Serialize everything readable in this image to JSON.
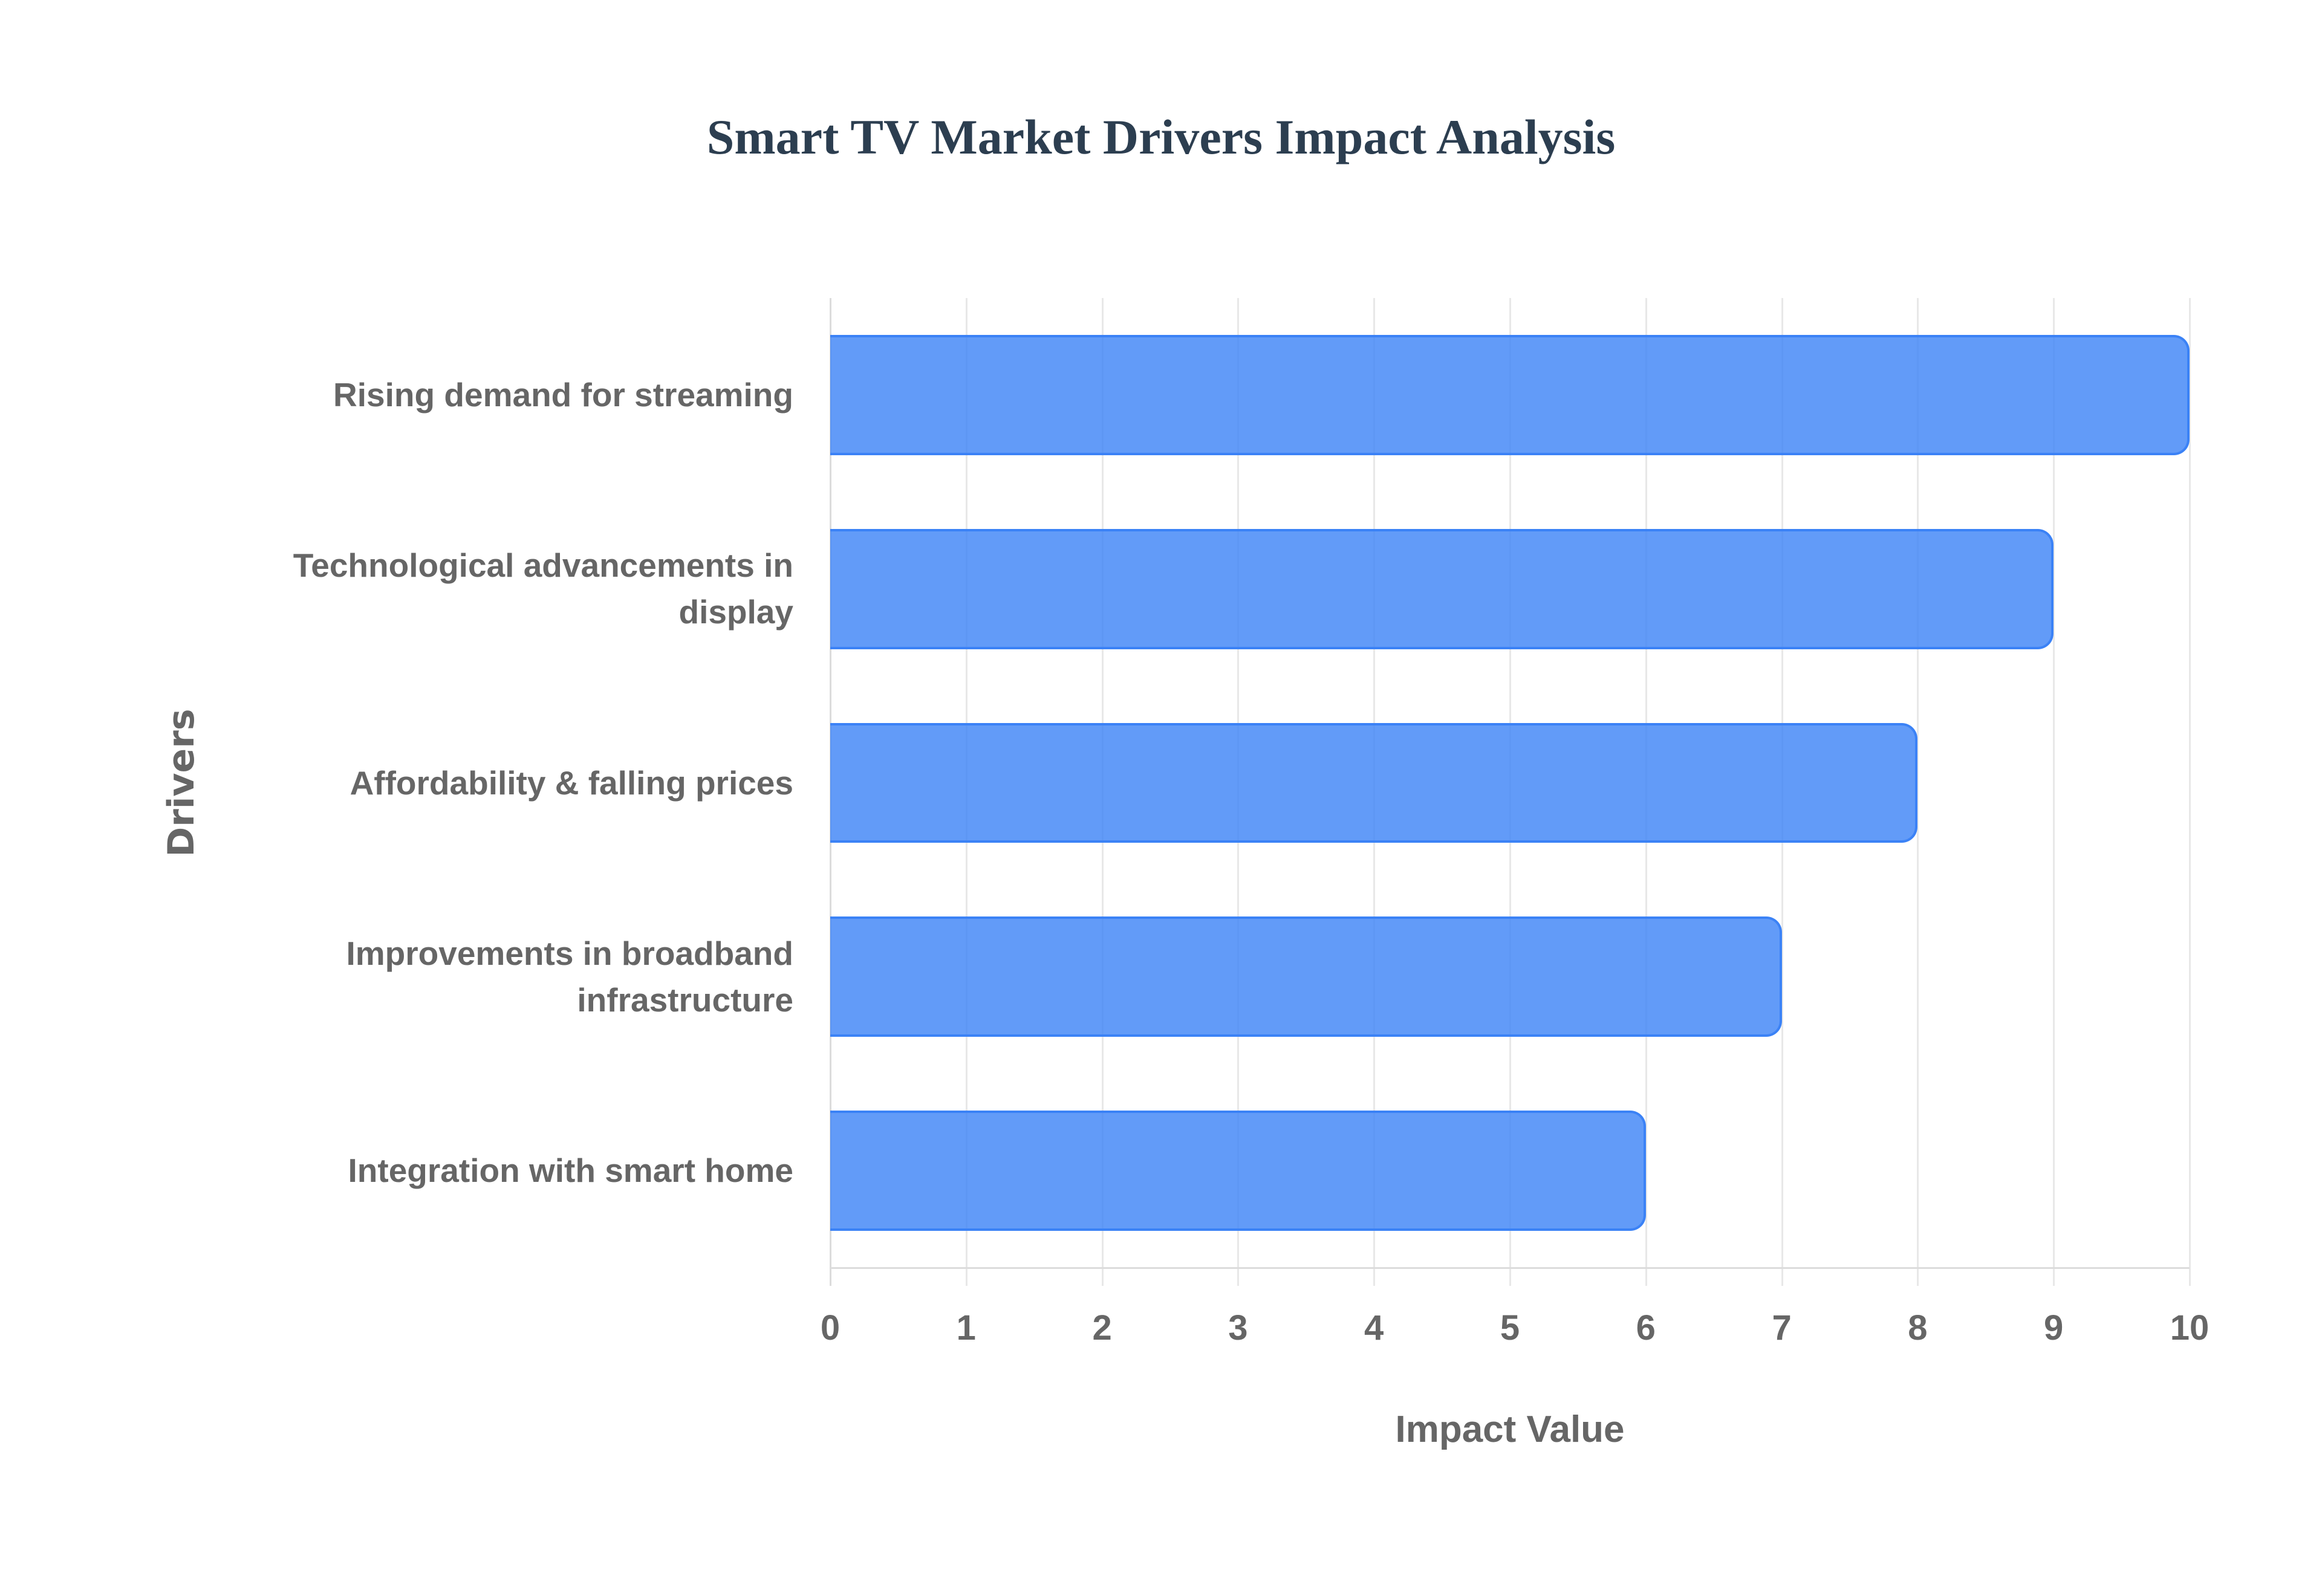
{
  "chart_data": {
    "type": "bar",
    "orientation": "horizontal",
    "title": "Smart TV Market Drivers Impact Analysis",
    "xlabel": "Impact Value",
    "ylabel": "Drivers",
    "categories": [
      "Rising demand for streaming",
      "Technological advancements in display",
      "Affordability & falling prices",
      "Improvements in broadband infrastructure",
      "Integration with smart home"
    ],
    "category_label_lines": [
      [
        "Rising demand for streaming"
      ],
      [
        "Technological advancements in",
        "display"
      ],
      [
        "Affordability & falling prices"
      ],
      [
        "Improvements in broadband",
        "infrastructure"
      ],
      [
        "Integration with smart home"
      ]
    ],
    "values": [
      10,
      9,
      8,
      7,
      6
    ],
    "xlim": [
      0,
      10
    ],
    "xticks": [
      "0",
      "1",
      "2",
      "3",
      "4",
      "5",
      "6",
      "7",
      "8",
      "9",
      "10"
    ],
    "grid": true,
    "legend": null,
    "colors": {
      "bar_fill": "rgba(59, 130, 246, 0.8)",
      "bar_border": "#3b82f6",
      "title": "#2c3e50",
      "axis_text": "#666666",
      "grid": "#e8e8e8"
    }
  }
}
